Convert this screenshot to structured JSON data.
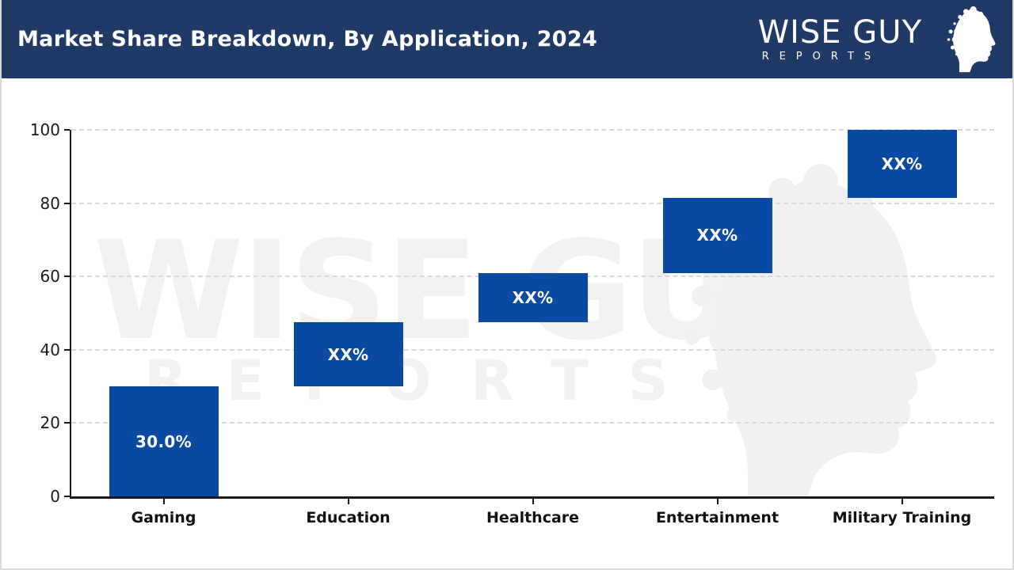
{
  "header": {
    "title": "Market Share Breakdown, By Application, 2024",
    "logo": {
      "line1": "WISE GUY",
      "line2": "REPORTS"
    }
  },
  "watermark": {
    "line1": "WISE GUY",
    "line2": "REPORTS"
  },
  "chart_data": {
    "type": "bar",
    "subtype": "waterfall",
    "title": "Market Share Breakdown, By Application, 2024",
    "categories": [
      "Gaming",
      "Education",
      "Healthcare",
      "Entertainment",
      "Military Training"
    ],
    "segments": [
      {
        "category": "Gaming",
        "start": 0,
        "end": 30,
        "label": "30.0%"
      },
      {
        "category": "Education",
        "start": 30,
        "end": 47.5,
        "label": "XX%"
      },
      {
        "category": "Healthcare",
        "start": 47.5,
        "end": 61,
        "label": "XX%"
      },
      {
        "category": "Entertainment",
        "start": 61,
        "end": 81.5,
        "label": "XX%"
      },
      {
        "category": "Military Training",
        "start": 81.5,
        "end": 100,
        "label": "XX%"
      }
    ],
    "xlabel": "",
    "ylabel": "",
    "ylim": [
      0,
      100
    ],
    "yticks": [
      0,
      20,
      40,
      60,
      80,
      100
    ],
    "grid": "horizontal-dashed",
    "legend": "none",
    "bar_color": "#0b4aa2",
    "bar_label_color": "#ffffff"
  },
  "colors": {
    "header_bg": "#203a68",
    "bar": "#0b4aa2",
    "grid": "#d8d8d8",
    "axis": "#1a1a1a",
    "watermark": "#f1f1f4",
    "canvas_border": "#d9d9d9"
  }
}
